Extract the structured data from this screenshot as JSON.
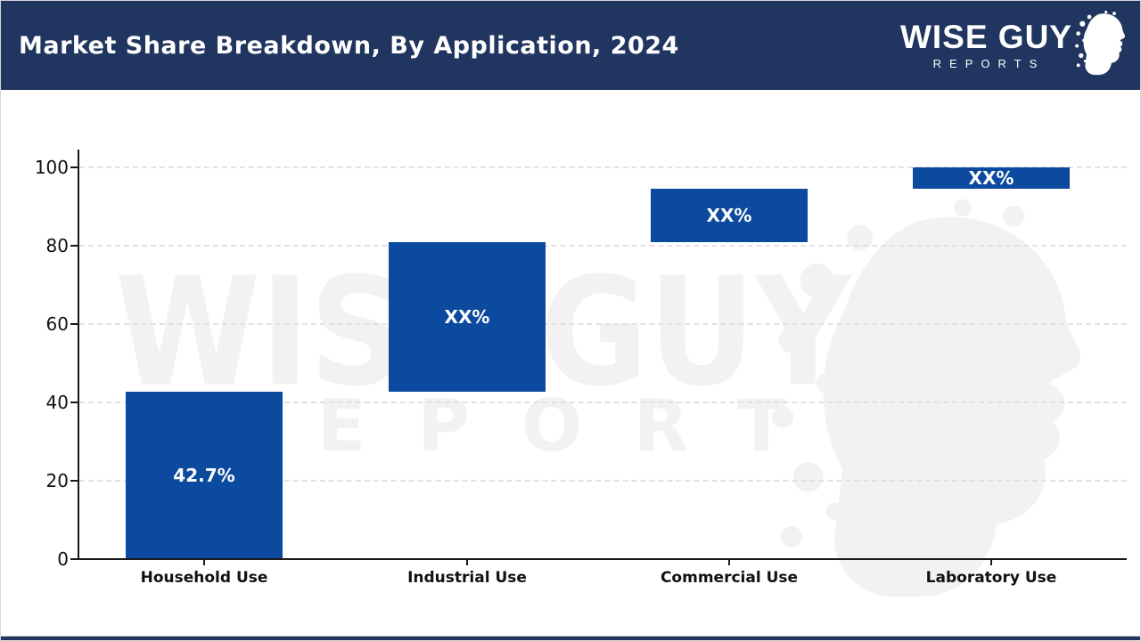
{
  "header": {
    "title": "Market Share Breakdown, By Application, 2024",
    "bg_color": "#20355f",
    "logo": {
      "line1": "WISE GUY",
      "line2": "REPORTS"
    }
  },
  "watermark": {
    "line1": "WISE GUY",
    "line2": "REPORTS"
  },
  "chart_data": {
    "type": "bar",
    "variant": "waterfall",
    "title": "Market Share Breakdown, By Application, 2024",
    "categories": [
      "Household Use",
      "Industrial Use",
      "Commercial Use",
      "Laboratory Use"
    ],
    "segments": [
      {
        "category": "Household Use",
        "start": 0,
        "end": 42.7,
        "label": "42.7%"
      },
      {
        "category": "Industrial Use",
        "start": 42.7,
        "end": 81.0,
        "label": "XX%"
      },
      {
        "category": "Commercial Use",
        "start": 81.0,
        "end": 94.5,
        "label": "XX%"
      },
      {
        "category": "Laboratory Use",
        "start": 94.5,
        "end": 100.0,
        "label": "XX%"
      }
    ],
    "yticks": [
      0,
      20,
      40,
      60,
      80,
      100
    ],
    "ylim": [
      0,
      105
    ],
    "xlabel": "",
    "ylabel": "",
    "grid": "horizontal-dashed",
    "legend": "none",
    "bar_color": "#0b4a9e",
    "bar_label_color": "#ffffff",
    "axis_color": "#1a1a1a",
    "gridline_color": "#e2e2e2"
  }
}
